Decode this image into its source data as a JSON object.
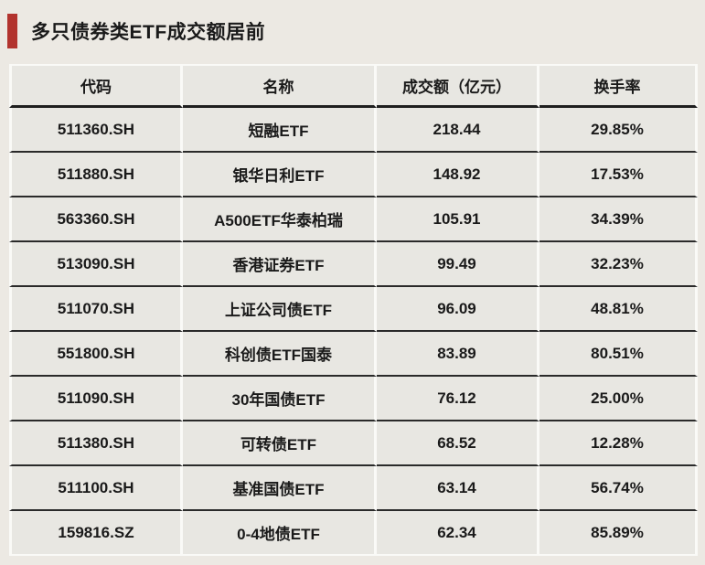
{
  "title": {
    "text": "多只债券类ETF成交额居前",
    "accent_color": "#B2332E"
  },
  "colors": {
    "page_background": "#ECE9E3",
    "cell_background": "#E8E7E2",
    "light_border": "#FAFAF7",
    "dark_rule": "#2A2A2A",
    "text": "#1A1A1A",
    "accent_red": "#B2332E"
  },
  "table": {
    "headers": {
      "code": "代码",
      "name": "名称",
      "volume": "成交额（亿元）",
      "turnover": "换手率"
    },
    "rows": [
      {
        "code": "511360.SH",
        "name": "短融ETF",
        "volume": "218.44",
        "turnover": "29.85%"
      },
      {
        "code": "511880.SH",
        "name": "银华日利ETF",
        "volume": "148.92",
        "turnover": "17.53%"
      },
      {
        "code": "563360.SH",
        "name": "A500ETF华泰柏瑞",
        "volume": "105.91",
        "turnover": "34.39%"
      },
      {
        "code": "513090.SH",
        "name": "香港证券ETF",
        "volume": "99.49",
        "turnover": "32.23%"
      },
      {
        "code": "511070.SH",
        "name": "上证公司债ETF",
        "volume": "96.09",
        "turnover": "48.81%"
      },
      {
        "code": "551800.SH",
        "name": "科创债ETF国泰",
        "volume": "83.89",
        "turnover": "80.51%"
      },
      {
        "code": "511090.SH",
        "name": "30年国债ETF",
        "volume": "76.12",
        "turnover": "25.00%"
      },
      {
        "code": "511380.SH",
        "name": "可转债ETF",
        "volume": "68.52",
        "turnover": "12.28%"
      },
      {
        "code": "511100.SH",
        "name": "基准国债ETF",
        "volume": "63.14",
        "turnover": "56.74%"
      },
      {
        "code": "159816.SZ",
        "name": "0-4地债ETF",
        "volume": "62.34",
        "turnover": "85.89%"
      }
    ]
  },
  "chart_data": {
    "type": "table",
    "title": "多只债券类ETF成交额居前",
    "columns": [
      "代码",
      "名称",
      "成交额（亿元）",
      "换手率"
    ],
    "rows": [
      [
        "511360.SH",
        "短融ETF",
        218.44,
        "29.85%"
      ],
      [
        "511880.SH",
        "银华日利ETF",
        148.92,
        "17.53%"
      ],
      [
        "563360.SH",
        "A500ETF华泰柏瑞",
        105.91,
        "34.39%"
      ],
      [
        "513090.SH",
        "香港证券ETF",
        99.49,
        "32.23%"
      ],
      [
        "511070.SH",
        "上证公司债ETF",
        96.09,
        "48.81%"
      ],
      [
        "551800.SH",
        "科创债ETF国泰",
        83.89,
        "80.51%"
      ],
      [
        "511090.SH",
        "30年国债ETF",
        76.12,
        "25.00%"
      ],
      [
        "511380.SH",
        "可转债ETF",
        68.52,
        "12.28%"
      ],
      [
        "511100.SH",
        "基准国债ETF",
        63.14,
        "56.74%"
      ],
      [
        "159816.SZ",
        "0-4地债ETF",
        62.34,
        "85.89%"
      ]
    ]
  }
}
